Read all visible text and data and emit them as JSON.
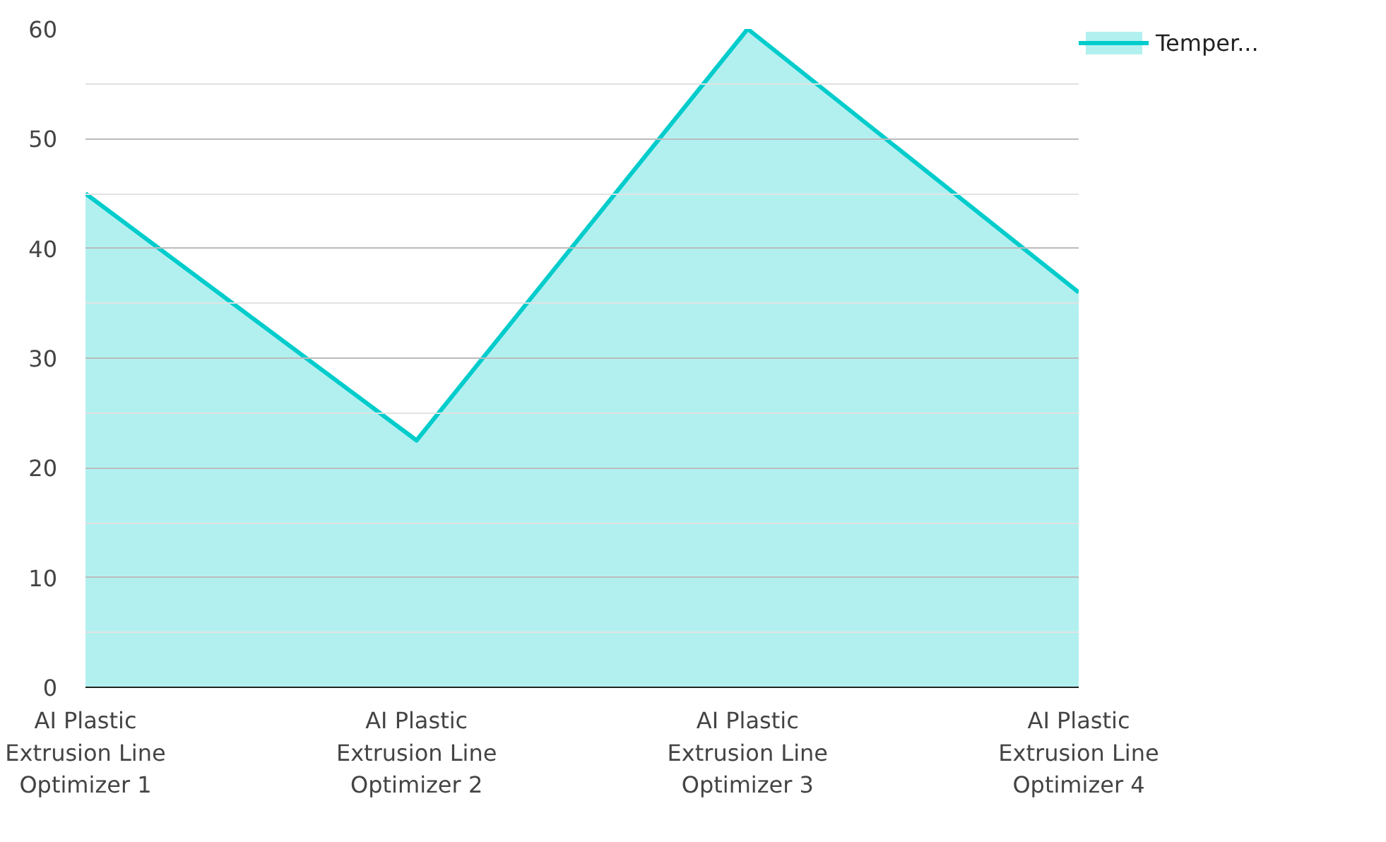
{
  "chart_data": {
    "type": "area",
    "categories": [
      "AI Plastic Extrusion Line Optimizer 1",
      "AI Plastic Extrusion Line Optimizer 2",
      "AI Plastic Extrusion Line Optimizer 3",
      "AI Plastic Extrusion Line Optimizer 4"
    ],
    "series": [
      {
        "name": "Temper...",
        "color": "#00cccc",
        "values": [
          45,
          22.5,
          60,
          36
        ]
      }
    ],
    "ylim": [
      0,
      60
    ],
    "yticks": [
      0,
      10,
      20,
      30,
      40,
      50,
      60
    ],
    "grid": "y",
    "legend": "top right"
  }
}
